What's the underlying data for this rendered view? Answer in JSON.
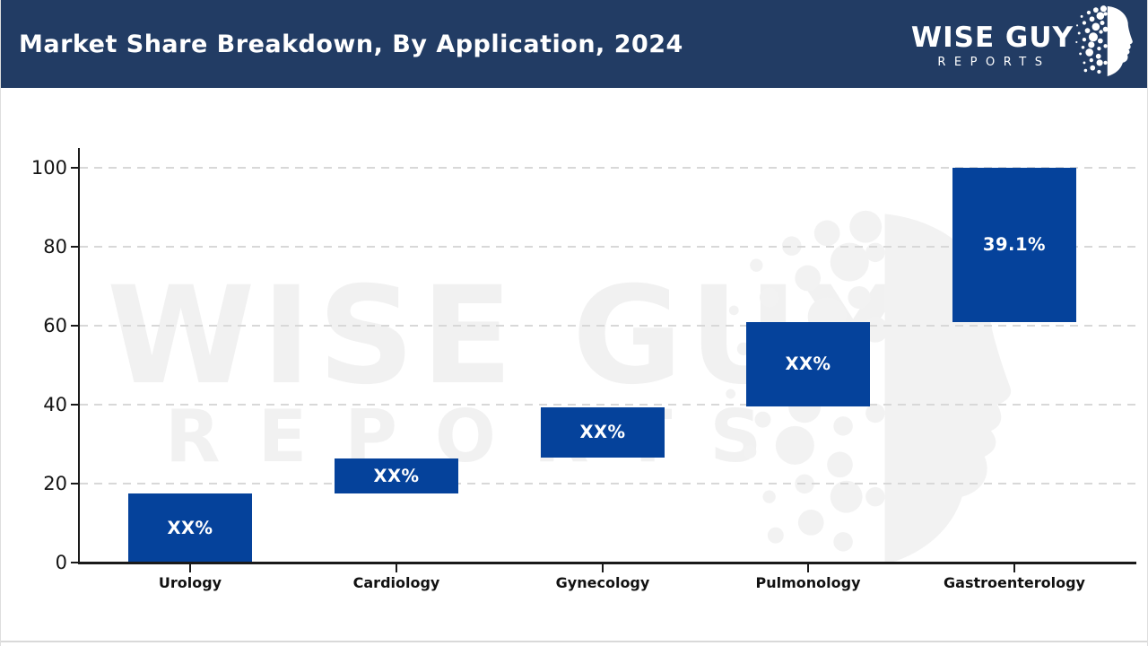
{
  "header": {
    "title": "Market Share Breakdown, By Application, 2024",
    "logo": {
      "line1": "WISE GUY",
      "line2": "REPORTS"
    }
  },
  "watermark": {
    "line1": "WISE GUY",
    "line2": "REPORTS"
  },
  "colors": {
    "header_bg": "#223c64",
    "bar": "#05429b",
    "bar_label": "#ffffff",
    "axis": "#1a1a1a",
    "grid": "#d8d8d8",
    "watermark": "#f1f1f1"
  },
  "chart_data": {
    "type": "bar",
    "variant": "waterfall",
    "title": "Market Share Breakdown, By Application, 2024",
    "xlabel": "",
    "ylabel": "",
    "categories": [
      "Urology",
      "Cardiology",
      "Gynecology",
      "Pulmonology",
      "Gastroenterology"
    ],
    "segments": [
      {
        "category": "Urology",
        "start": 0,
        "end": 17.5,
        "label": "XX%"
      },
      {
        "category": "Cardiology",
        "start": 17.6,
        "end": 26.4,
        "label": "XX%"
      },
      {
        "category": "Gynecology",
        "start": 26.6,
        "end": 39.4,
        "label": "XX%"
      },
      {
        "category": "Pulmonology",
        "start": 39.6,
        "end": 61.0,
        "label": "XX%"
      },
      {
        "category": "Gastroenterology",
        "start": 61.0,
        "end": 100.0,
        "label": "39.1%"
      }
    ],
    "yticks": [
      0,
      20,
      40,
      60,
      80,
      100
    ],
    "ylim": [
      0,
      105
    ],
    "grid": "horizontal dashed",
    "legend": "none",
    "bar_color": "#05429b",
    "label_color": "#ffffff"
  }
}
